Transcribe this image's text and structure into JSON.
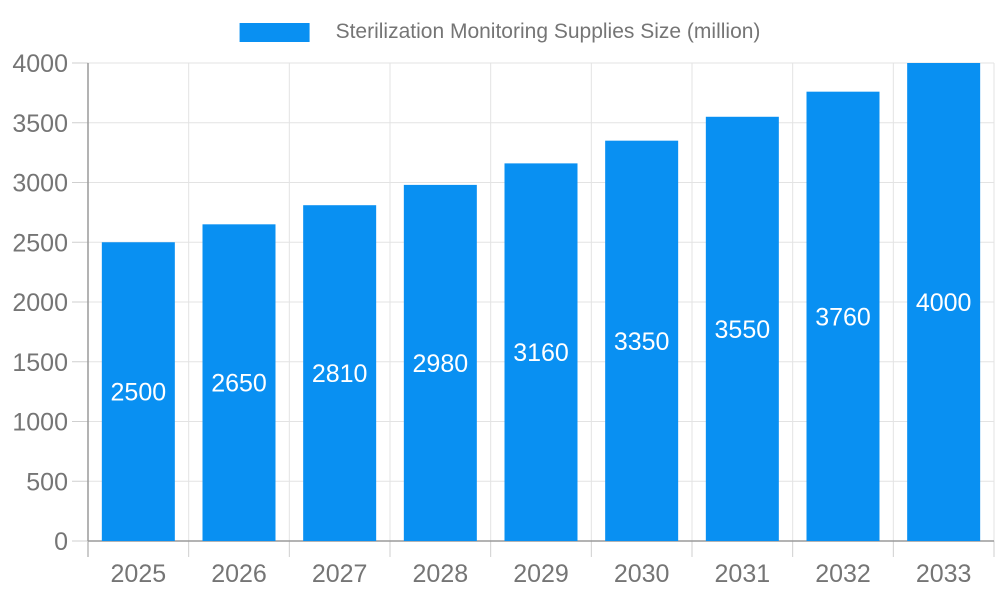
{
  "legend": {
    "position": "top"
  },
  "chart_data": {
    "type": "bar",
    "title": "Sterilization Monitoring Supplies Size (million)",
    "categories": [
      "2025",
      "2026",
      "2027",
      "2028",
      "2029",
      "2030",
      "2031",
      "2032",
      "2033"
    ],
    "values": [
      2500,
      2650,
      2810,
      2980,
      3160,
      3350,
      3550,
      3760,
      4000
    ],
    "xlabel": "",
    "ylabel": "",
    "ylim": [
      0,
      4000
    ],
    "ytick_step": 500,
    "y_tick_labels": [
      "0",
      "500",
      "1000",
      "1500",
      "2000",
      "2500",
      "3000",
      "3500",
      "4000"
    ],
    "grid": true,
    "legend_position": "top",
    "bar_color": "#0990f2",
    "bar_label_color": "#ffffff",
    "axis_text_color": "#757575",
    "grid_color": "#e3e3e3",
    "tick_color": "#cfcfcf",
    "axis_line_color": "#9a9a9a",
    "background_color": "#ffffff"
  }
}
